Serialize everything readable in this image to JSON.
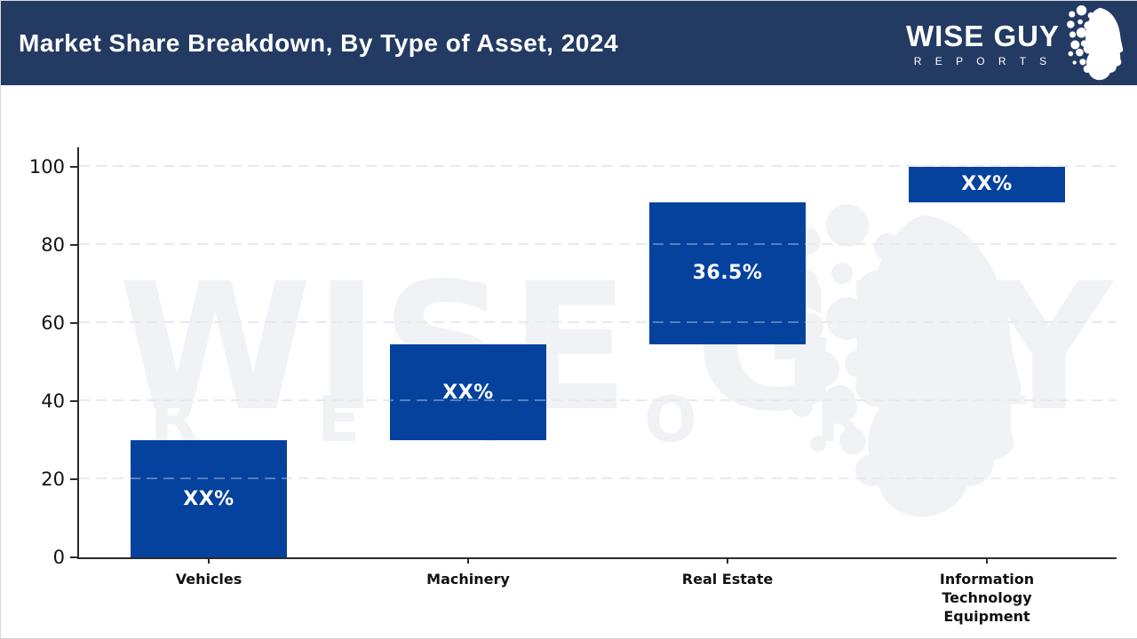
{
  "header": {
    "title": "Market Share Breakdown, By Type of Asset, 2024",
    "bg_color": "#233a63",
    "logo": {
      "line1": "WISE GUY",
      "line2": "R E P O R T S"
    }
  },
  "watermark": {
    "line1": "WISE GUY",
    "line2": "R E P O R T S"
  },
  "chart_data": {
    "type": "bar",
    "subtype": "waterfall",
    "title": "Market Share Breakdown, By Type of Asset, 2024",
    "xlabel": "",
    "ylabel": "",
    "categories": [
      "Vehicles",
      "Machinery",
      "Real Estate",
      "Information Technology Equipment"
    ],
    "segments": [
      {
        "category": "Vehicles",
        "start": 0,
        "end": 30,
        "value": 30,
        "value_label": "XX%"
      },
      {
        "category": "Machinery",
        "start": 30,
        "end": 54.5,
        "value": 24.5,
        "value_label": "XX%"
      },
      {
        "category": "Real Estate",
        "start": 54.5,
        "end": 91,
        "value": 36.5,
        "value_label": "36.5%"
      },
      {
        "category": "Information Technology Equipment",
        "start": 91,
        "end": 100,
        "value": 9,
        "value_label": "XX%"
      }
    ],
    "yticks": [
      0,
      20,
      40,
      60,
      80,
      100
    ],
    "ylim": [
      0,
      105
    ],
    "bar_color": "#05429e",
    "grid": "dashed horizontal",
    "legend": "none"
  }
}
